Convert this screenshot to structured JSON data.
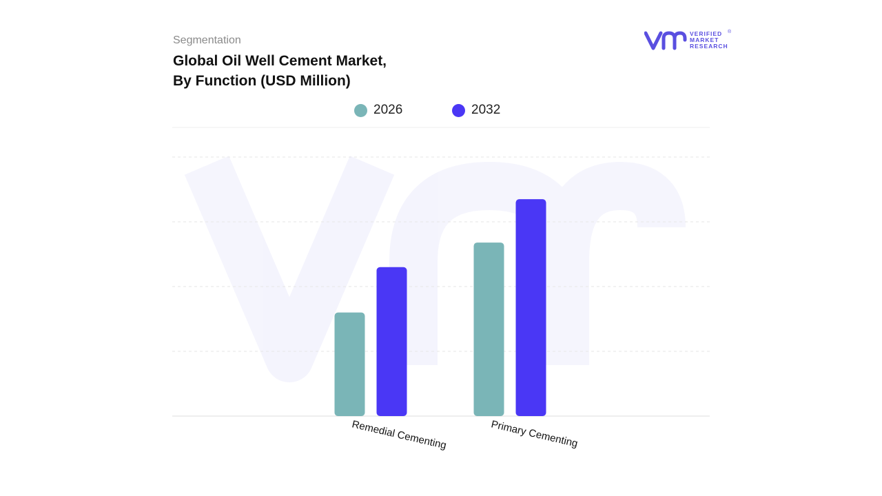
{
  "header": {
    "kicker": "Segmentation",
    "title_line1": "Global Oil Well Cement Market,",
    "title_line2": "By Function (USD Million)"
  },
  "logo": {
    "lines": [
      "VERIFIED",
      "MARKET",
      "RESEARCH"
    ],
    "registered": "®",
    "color": "#5a4fe0"
  },
  "chart_data": {
    "type": "bar",
    "title": "Global Oil Well Cement Market, By Function (USD Million)",
    "categories": [
      "Remedial Cementing",
      "Primary Cementing"
    ],
    "series": [
      {
        "name": "2026",
        "color": "#7ab5b7",
        "values": [
          1.6,
          2.68
        ]
      },
      {
        "name": "2032",
        "color": "#4a37f5",
        "values": [
          2.3,
          3.35
        ]
      }
    ],
    "ylim": [
      0,
      4
    ],
    "grid": true,
    "legend_position": "top-center",
    "xlabel": "",
    "ylabel": "",
    "tick_labels_visible": false
  }
}
